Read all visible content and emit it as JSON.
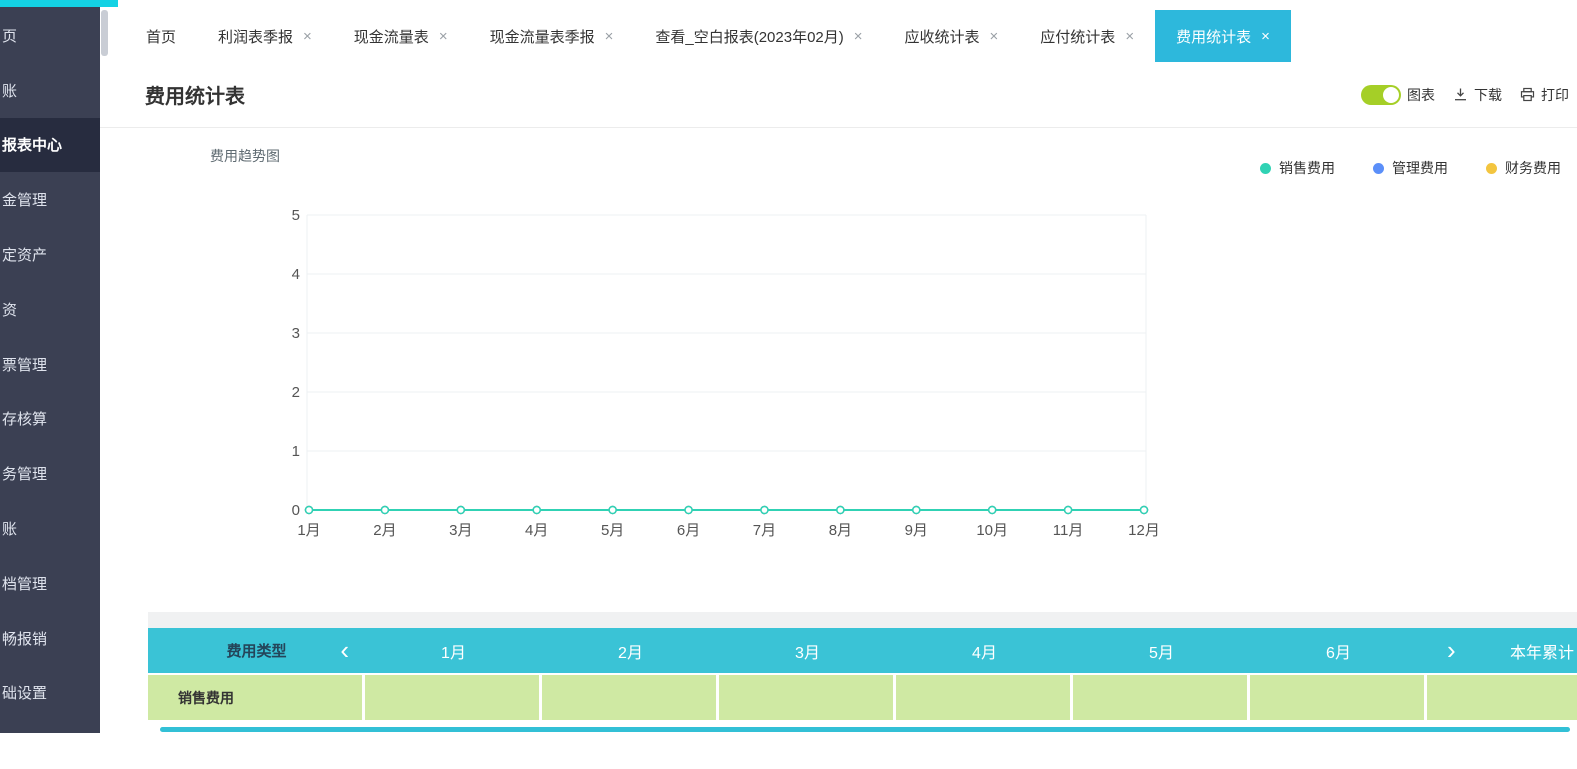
{
  "ui": {
    "close_glyph": "×"
  },
  "sidebar": {
    "items": [
      {
        "label": "页"
      },
      {
        "label": "账"
      },
      {
        "label": "报表中心",
        "active": true
      },
      {
        "label": "金管理"
      },
      {
        "label": "定资产"
      },
      {
        "label": "资"
      },
      {
        "label": "票管理"
      },
      {
        "label": "存核算"
      },
      {
        "label": "务管理"
      },
      {
        "label": "账"
      },
      {
        "label": "档管理"
      },
      {
        "label": "畅报销"
      },
      {
        "label": "础设置"
      }
    ]
  },
  "tabs": [
    {
      "label": "首页",
      "closable": false,
      "active": false
    },
    {
      "label": "利润表季报",
      "closable": true,
      "active": false
    },
    {
      "label": "现金流量表",
      "closable": true,
      "active": false
    },
    {
      "label": "现金流量表季报",
      "closable": true,
      "active": false
    },
    {
      "label": "查看_空白报表(2023年02月)",
      "closable": true,
      "active": false
    },
    {
      "label": "应收统计表",
      "closable": true,
      "active": false
    },
    {
      "label": "应付统计表",
      "closable": true,
      "active": false
    },
    {
      "label": "费用统计表",
      "closable": true,
      "active": true
    }
  ],
  "page": {
    "title": "费用统计表",
    "toolbar": {
      "chart_toggle_label": "图表",
      "toggle_on": true,
      "download_label": "下载",
      "print_label": "打印"
    }
  },
  "chart_data": {
    "type": "line",
    "title": "费用趋势图",
    "x": [
      "1月",
      "2月",
      "3月",
      "4月",
      "5月",
      "6月",
      "7月",
      "8月",
      "9月",
      "10月",
      "11月",
      "12月"
    ],
    "series": [
      {
        "name": "销售费用",
        "color": "#30d2b4",
        "values": [
          0,
          0,
          0,
          0,
          0,
          0,
          0,
          0,
          0,
          0,
          0,
          0
        ]
      },
      {
        "name": "管理费用",
        "color": "#5b8ff9",
        "values": [
          0,
          0,
          0,
          0,
          0,
          0,
          0,
          0,
          0,
          0,
          0,
          0
        ]
      },
      {
        "name": "财务费用",
        "color": "#f3c53f",
        "values": [
          0,
          0,
          0,
          0,
          0,
          0,
          0,
          0,
          0,
          0,
          0,
          0
        ]
      }
    ],
    "ylim": [
      0,
      5
    ],
    "yticks": [
      0,
      1,
      2,
      3,
      4,
      5
    ],
    "grid": true,
    "legend_position": "top-right"
  },
  "table": {
    "first_column_header": "费用类型",
    "month_columns": [
      "1月",
      "2月",
      "3月",
      "4月",
      "5月",
      "6月"
    ],
    "last_column_header": "本年累计",
    "prev_arrow": "‹",
    "next_arrow": "›",
    "rows": [
      {
        "label": "销售费用",
        "values": [
          "",
          "",
          "",
          "",
          "",
          ""
        ],
        "highlighted": true
      },
      {
        "label": "",
        "values": [
          "",
          "",
          "",
          "",
          "",
          ""
        ],
        "highlighted": false
      }
    ]
  },
  "colors": {
    "accent_cyan": "#14d2e4",
    "active_tab": "#2db8dc",
    "table_header": "#3ac3d6",
    "row_highlight": "#cfe9a3",
    "toggle_green": "#a5cf27",
    "sidebar_bg": "#3b4053",
    "sidebar_active_bg": "#272c3f"
  }
}
